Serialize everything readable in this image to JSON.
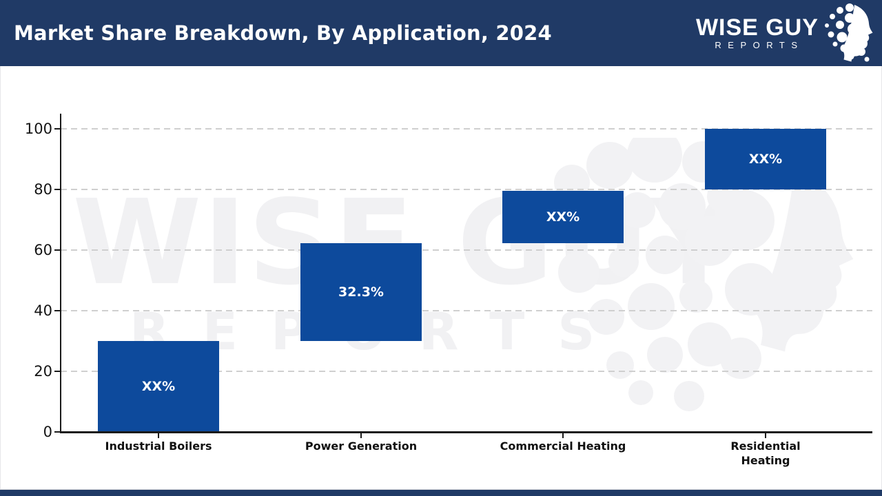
{
  "header": {
    "title": "Market Share Breakdown, By Application, 2024",
    "logo": {
      "name_top": "WISE GUY",
      "name_bottom": "REPORTS"
    }
  },
  "watermark": {
    "brand_top": "WISE GUY",
    "brand_bottom": "REPORTS"
  },
  "chart_data": {
    "type": "bar",
    "subtype": "floating-waterfall",
    "title": "Market Share Breakdown, By Application, 2024",
    "categories": [
      "Industrial Boilers",
      "Power Generation",
      "Commercial Heating",
      "Residential\nHeating"
    ],
    "segments": [
      {
        "category": "Industrial Boilers",
        "start": 0,
        "end": 30,
        "label": "XX%"
      },
      {
        "category": "Power Generation",
        "start": 30,
        "end": 62.3,
        "label": "32.3%"
      },
      {
        "category": "Commercial Heating",
        "start": 62.3,
        "end": 79.5,
        "label": "XX%"
      },
      {
        "category": "Residential Heating",
        "start": 80,
        "end": 100,
        "label": "XX%"
      }
    ],
    "xlabel": "",
    "ylabel": "",
    "yticks": [
      0,
      20,
      40,
      60,
      80,
      100
    ],
    "ylim": [
      0,
      105
    ],
    "grid": "dashed-horizontal",
    "legend": "none",
    "bar_color": "#0d4a9c",
    "bar_label_color": "#ffffff"
  },
  "colors": {
    "header_bg": "#203a66",
    "footer_bg": "#203a66",
    "page_bg": "#ffffff",
    "axis": "#1a1a1a",
    "gridline": "#cfcfcf",
    "watermark": "#f1f1f3"
  }
}
